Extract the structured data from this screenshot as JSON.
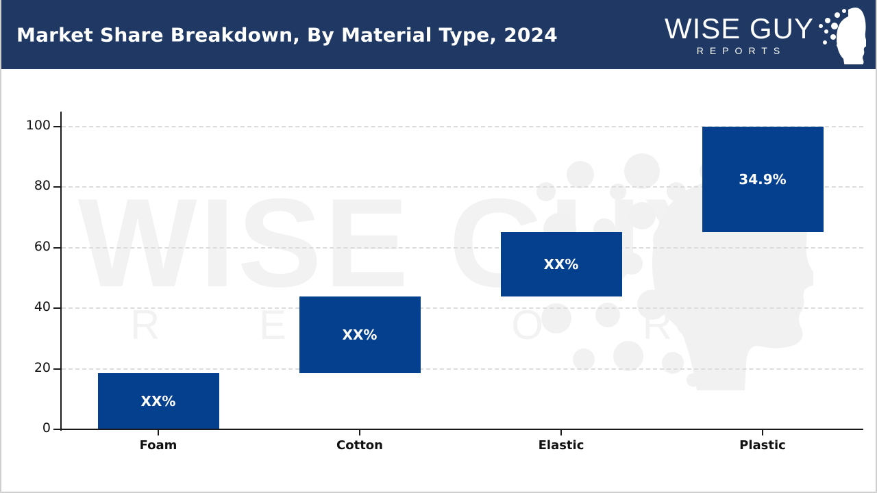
{
  "header": {
    "title": "Market Share Breakdown, By Material Type, 2024",
    "background": "#1f3864",
    "logo": {
      "line1": "WISE GUY",
      "line2": "REPORTS"
    }
  },
  "watermark": {
    "line1": "WISE GUY",
    "line2": "R E P O R T S"
  },
  "chart_data": {
    "type": "bar",
    "subtype": "waterfall-floating-bars",
    "title": "Market Share Breakdown, By Material Type, 2024",
    "categories": [
      "Foam",
      "Cotton",
      "Elastic",
      "Plastic"
    ],
    "segments": [
      {
        "category": "Foam",
        "start": 0,
        "end": 18.5,
        "label": "XX%"
      },
      {
        "category": "Cotton",
        "start": 18.5,
        "end": 44,
        "label": "XX%"
      },
      {
        "category": "Elastic",
        "start": 44,
        "end": 65.1,
        "label": "XX%"
      },
      {
        "category": "Plastic",
        "start": 65.1,
        "end": 100,
        "label": "34.9%"
      }
    ],
    "xlabel": "",
    "ylabel": "",
    "ylim": [
      0,
      100
    ],
    "yticks": [
      0,
      20,
      40,
      60,
      80,
      100
    ],
    "grid": "horizontal-dashed",
    "legend": "none",
    "bar_color": "#05408f",
    "bar_label_color": "#ffffff",
    "axis_color": "#1a1a1a",
    "grid_color": "#dcdcdc"
  },
  "page": {
    "background": "#ffffff",
    "border_color": "#cfcfcf"
  }
}
